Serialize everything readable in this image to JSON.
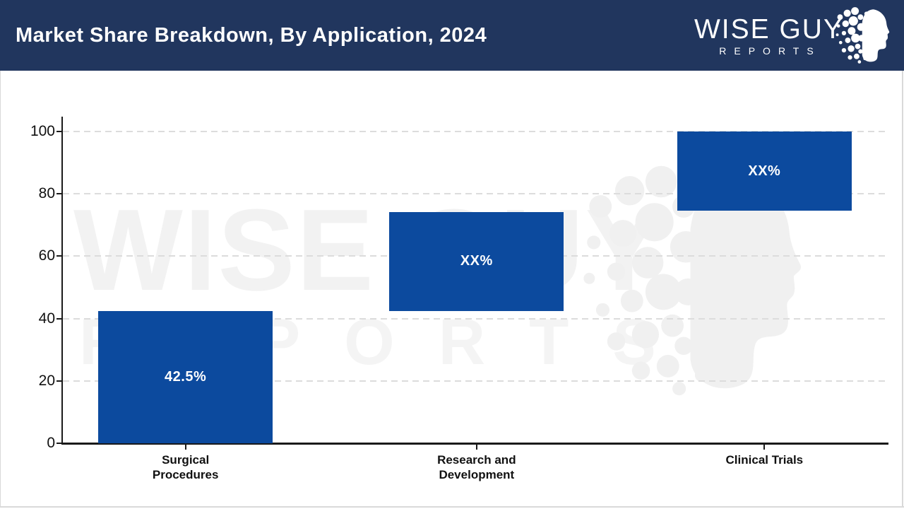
{
  "header": {
    "title": "Market Share Breakdown, By Application, 2024",
    "logo": {
      "wordmark": "WISE GUY",
      "subtext": "REPORTS"
    }
  },
  "watermark": {
    "wordmark": "WISE GUY",
    "subtext": "REPORTS"
  },
  "chart_data": {
    "type": "bar",
    "subtype": "floating-waterfall",
    "title": "Market Share Breakdown, By Application, 2024",
    "unit": "%",
    "categories": [
      "Surgical Procedures",
      "Research and Development",
      "Clinical Trials"
    ],
    "categories_lines": [
      [
        "Surgical",
        "Procedures"
      ],
      [
        "Research and",
        "Development"
      ],
      [
        "Clinical Trials"
      ]
    ],
    "series": [
      {
        "name": "Market share (%)",
        "segments": [
          {
            "category": "Surgical Procedures",
            "start": 0,
            "end": 42.5,
            "label": "42.5%"
          },
          {
            "category": "Research and Development",
            "start": 42.5,
            "end": 74.2,
            "label": "XX%"
          },
          {
            "category": "Clinical Trials",
            "start": 74.5,
            "end": 100,
            "label": "XX%"
          }
        ]
      }
    ],
    "xlabel": "",
    "ylabel": "",
    "ylim": [
      0,
      105
    ],
    "yticks": [
      0,
      20,
      40,
      60,
      80,
      100
    ],
    "grid": {
      "horizontal": true,
      "style": "dashed",
      "color": "#dcdcdc"
    },
    "legend": "none",
    "colors": {
      "bar": "#0c4a9e",
      "bar_label": "#ffffff",
      "axis": "#1a1a1a",
      "tick_label": "#111111"
    }
  },
  "colors": {
    "header_bg": "#21365e",
    "page_bg": "#ffffff",
    "watermark": "#f2f2f2",
    "border": "#d9d9d9"
  }
}
